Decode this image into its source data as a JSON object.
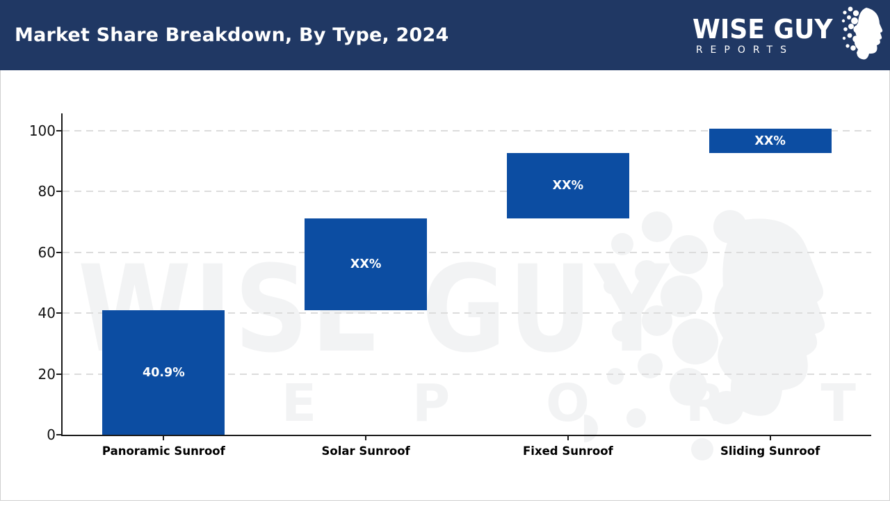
{
  "header": {
    "title": "Market Share Breakdown, By Type, 2024",
    "bg_color": "#203864",
    "logo": {
      "line1": "WISE GUY",
      "line2": "REPORTS"
    }
  },
  "watermark": {
    "line1": "WISE GUY",
    "line2": "R E P O R T S"
  },
  "chart_data": {
    "type": "bar",
    "subtype": "waterfall",
    "title": "Market Share Breakdown, By Type, 2024",
    "categories": [
      "Panoramic Sunroof",
      "Solar Sunroof",
      "Fixed Sunroof",
      "Sliding Sunroof"
    ],
    "segments": [
      {
        "category": "Panoramic Sunroof",
        "start": 0,
        "end": 40.9,
        "label": "40.9%"
      },
      {
        "category": "Solar Sunroof",
        "start": 40.9,
        "end": 71.2,
        "label": "XX%"
      },
      {
        "category": "Fixed Sunroof",
        "start": 71.2,
        "end": 92.5,
        "label": "XX%"
      },
      {
        "category": "Sliding Sunroof",
        "start": 92.5,
        "end": 100.5,
        "label": "XX%"
      }
    ],
    "xlabel": "",
    "ylabel": "",
    "yticks": [
      0,
      20,
      40,
      60,
      80,
      100
    ],
    "ylim": [
      0,
      105.6
    ],
    "grid": "horizontal-dashed",
    "legend": "none",
    "bar_color": "#0c4da2",
    "value_label_color": "#ffffff",
    "grid_color": "#dcdcdc",
    "axis_color": "#1a1a1a"
  }
}
